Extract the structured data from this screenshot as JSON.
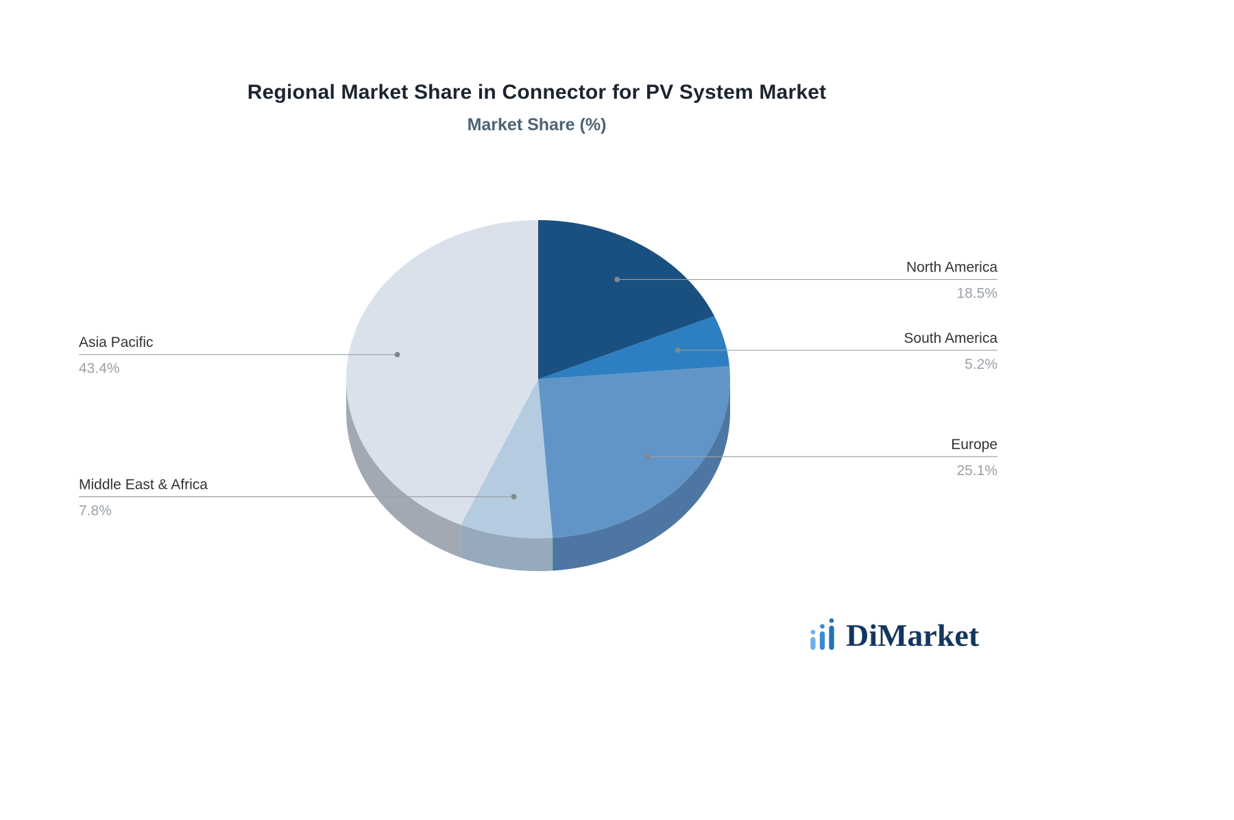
{
  "chart_data": {
    "type": "pie",
    "title": "Regional Market Share in Connector for PV System Market",
    "subtitle": "Market Share (%)",
    "unit": "%",
    "direction": "clockwise",
    "start_angle_deg": 0,
    "legend_position": "callout-labels",
    "slices": [
      {
        "label": "North America",
        "value": 18.5,
        "color": "#1a507f",
        "side_color": "#15405f"
      },
      {
        "label": "South America",
        "value": 5.2,
        "color": "#2d7fc1",
        "side_color": "#2563a0"
      },
      {
        "label": "Europe",
        "value": 25.1,
        "color": "#6195c8",
        "side_color": "#4d77a2"
      },
      {
        "label": "Middle East & Africa",
        "value": 7.8,
        "color": "#b5cbe0",
        "side_color": "#97a9bd"
      },
      {
        "label": "Asia Pacific",
        "value": 43.4,
        "color": "#dbe1eb",
        "side_color": "#a3a9b3"
      }
    ],
    "label_color": "#333333",
    "value_color": "#9aa0a6",
    "line_color": "#9aa0a6"
  },
  "branding": {
    "logo_text": "DiMarket",
    "logo_icon": "bar-chart-icon",
    "icon_colors": [
      "#6db1e8",
      "#3b8ad8",
      "#2470b8"
    ]
  }
}
